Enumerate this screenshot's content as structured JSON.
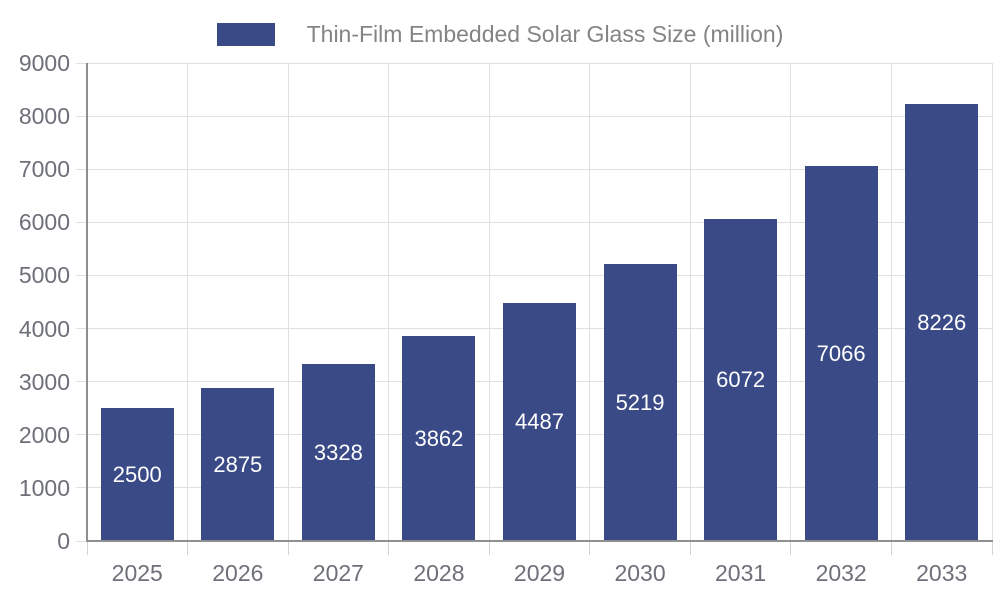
{
  "chart_data": {
    "type": "bar",
    "legend_label": "Thin-Film Embedded Solar Glass Size (million)",
    "categories": [
      "2025",
      "2026",
      "2027",
      "2028",
      "2029",
      "2030",
      "2031",
      "2032",
      "2033"
    ],
    "values": [
      2500,
      2875,
      3328,
      3862,
      4487,
      5219,
      6072,
      7066,
      8226
    ],
    "ylim": [
      0,
      9000
    ],
    "ytick_step": 1000,
    "ytick_labels": [
      "0",
      "1000",
      "2000",
      "3000",
      "4000",
      "5000",
      "6000",
      "7000",
      "8000",
      "9000"
    ],
    "grid": "horizontal-and-vertical",
    "legend_position": "top-center",
    "value_label_position": "inside-center",
    "colors": {
      "bar": "#394a87",
      "bar_value_label": "#ffffff",
      "axis_label": "#6e7079",
      "legend_text": "#848484",
      "gridline": "#e0e0e0",
      "axis_line": "#8f8f8f",
      "background": "#ffffff"
    }
  }
}
